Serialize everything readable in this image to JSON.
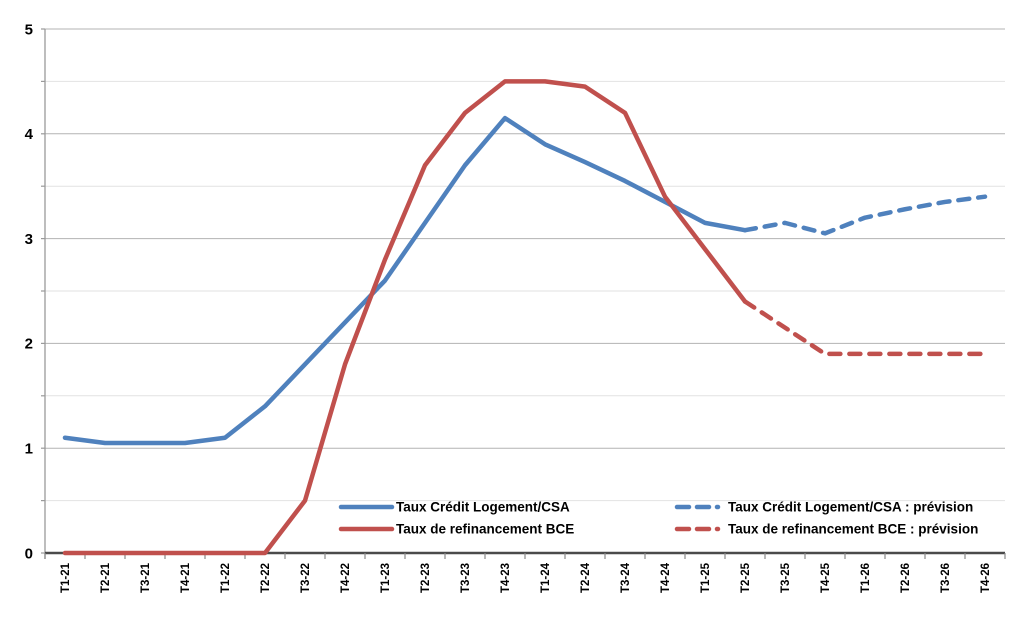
{
  "chart_data": {
    "type": "line",
    "title": "",
    "categories": [
      "T1-21",
      "T2-21",
      "T3-21",
      "T4-21",
      "T1-22",
      "T2-22",
      "T3-22",
      "T4-22",
      "T1-23",
      "T2-23",
      "T3-23",
      "T4-23",
      "T1-24",
      "T2-24",
      "T3-24",
      "T4-24",
      "T1-25",
      "T2-25",
      "T3-25",
      "T4-25",
      "T1-26",
      "T2-26",
      "T3-26",
      "T4-26"
    ],
    "y_axis": {
      "min": 0,
      "max": 5,
      "tick_step": 1,
      "minor_step": 0.5,
      "tick_labels": [
        "0",
        "1",
        "2",
        "3",
        "4",
        "5"
      ]
    },
    "x_axis": {
      "label_rotation_deg": -90
    },
    "grid": {
      "major_color": "#b3b3b3",
      "minor_color": "#e2e2e2",
      "x_axis_color": "#4a4a4a",
      "y_axis_color": "#9a9a9a"
    },
    "series": [
      {
        "name": "Taux Crédit Logement/CSA",
        "color": "#4F81BD",
        "dash": false,
        "start_index": 0,
        "values": [
          1.1,
          1.05,
          1.05,
          1.05,
          1.1,
          1.4,
          1.8,
          2.2,
          2.6,
          3.15,
          3.7,
          4.15,
          3.9,
          3.73,
          3.55,
          3.35,
          3.15,
          3.08
        ]
      },
      {
        "name": "Taux Crédit Logement/CSA : prévision",
        "color": "#4F81BD",
        "dash": true,
        "start_index": 17,
        "values": [
          3.08,
          3.15,
          3.05,
          3.2,
          3.28,
          3.35,
          3.4
        ]
      },
      {
        "name": "Taux de refinancement BCE",
        "color": "#C0504D",
        "dash": false,
        "start_index": 0,
        "values": [
          0,
          0,
          0,
          0,
          0,
          0,
          0.5,
          1.8,
          2.8,
          3.7,
          4.2,
          4.5,
          4.5,
          4.45,
          4.2,
          3.4,
          2.9,
          2.4
        ]
      },
      {
        "name": "Taux de refinancement BCE : prévision",
        "color": "#C0504D",
        "dash": true,
        "start_index": 17,
        "values": [
          2.4,
          2.15,
          1.9,
          1.9,
          1.9,
          1.9,
          1.9
        ]
      }
    ],
    "legend": {
      "position": "bottom-inside",
      "entries": [
        {
          "series_index": 0,
          "column": 0,
          "row": 0
        },
        {
          "series_index": 2,
          "column": 0,
          "row": 1
        },
        {
          "series_index": 1,
          "column": 1,
          "row": 0
        },
        {
          "series_index": 3,
          "column": 1,
          "row": 1
        }
      ]
    }
  }
}
